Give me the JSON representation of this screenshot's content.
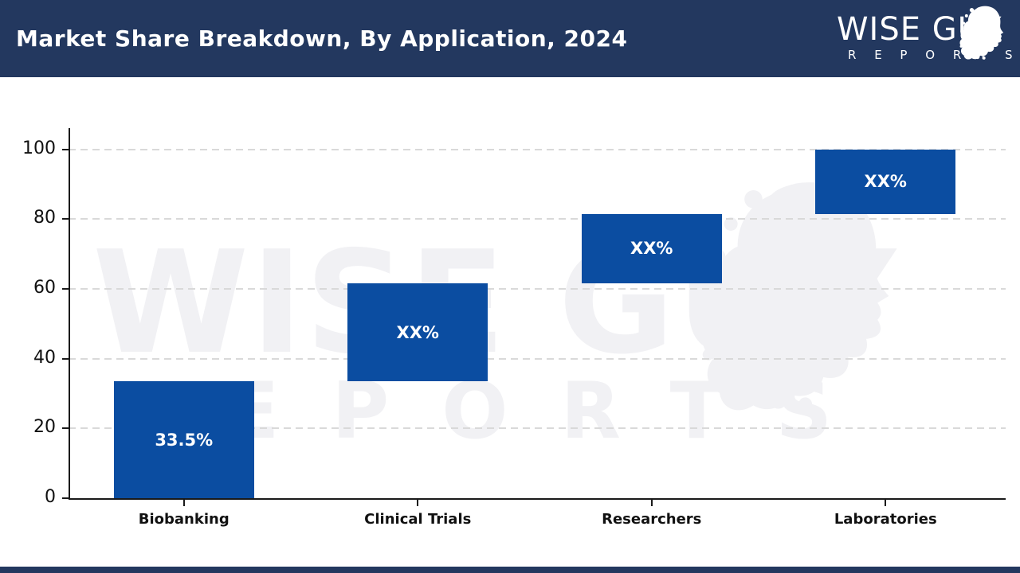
{
  "header": {
    "title": "Market Share Breakdown, By Application, 2024",
    "bg_color": "#23385f",
    "logo": {
      "line1": "WISE GUY",
      "line2": "R E P O R T S"
    }
  },
  "watermark": {
    "line1": "WISE GUY",
    "line2": "REPORTS"
  },
  "chart_data": {
    "type": "bar",
    "subtype": "waterfall-floating-bars",
    "title": "Market Share Breakdown, By Application, 2024",
    "categories": [
      "Biobanking",
      "Clinical Trials",
      "Researchers",
      "Laboratories"
    ],
    "segments": [
      {
        "category": "Biobanking",
        "start": 0,
        "end": 33.5,
        "label": "33.5%"
      },
      {
        "category": "Clinical Trials",
        "start": 33.5,
        "end": 61.5,
        "label": "XX%"
      },
      {
        "category": "Researchers",
        "start": 61.5,
        "end": 81.5,
        "label": "XX%"
      },
      {
        "category": "Laboratories",
        "start": 81.5,
        "end": 100,
        "label": "XX%"
      }
    ],
    "xlabel": "",
    "ylabel": "",
    "ylim": [
      0,
      100
    ],
    "yticks": [
      "0",
      "20",
      "40",
      "60",
      "80",
      "100"
    ],
    "ytick_values": [
      0,
      20,
      40,
      60,
      80,
      100
    ],
    "grid": "dashed horizontal",
    "legend": "none",
    "bar_color": "#0b4da1",
    "bar_label_color": "#ffffff",
    "axis_color": "#1a1a1a",
    "grid_color": "#d9d9d9"
  }
}
